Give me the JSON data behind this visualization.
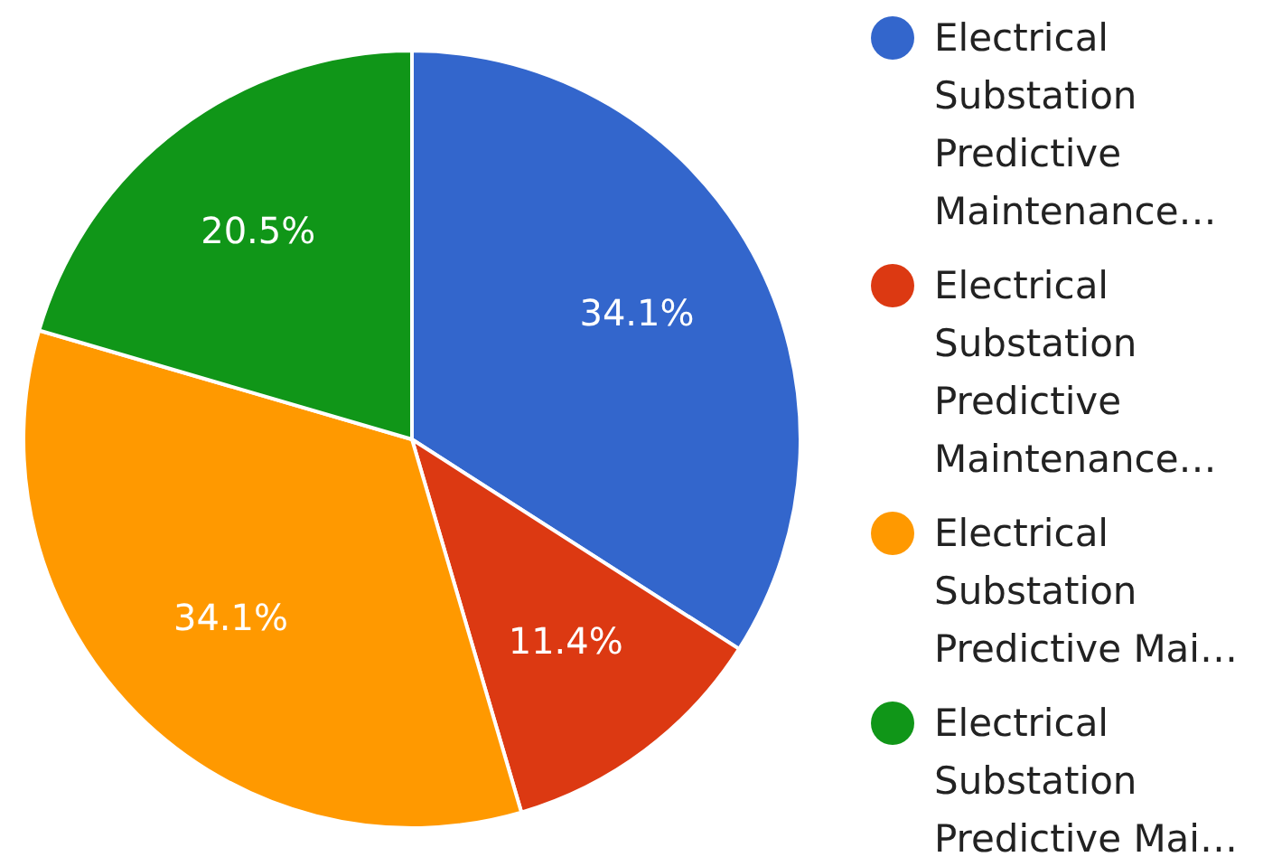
{
  "chart_data": {
    "type": "pie",
    "categories": [
      "Electrical Substation Predictive Maintenance…",
      "Electrical Substation Predictive Maintenance…",
      "Electrical Substation Predictive Mai…",
      "Electrical Substation Predictive Mai…"
    ],
    "values": [
      34.1,
      11.4,
      34.1,
      20.5
    ],
    "colors": [
      "#3366cc",
      "#dc3912",
      "#ff9900",
      "#109618"
    ],
    "value_labels": [
      "34.1%",
      "11.4%",
      "34.1%",
      "20.5%"
    ],
    "legend": "right"
  }
}
